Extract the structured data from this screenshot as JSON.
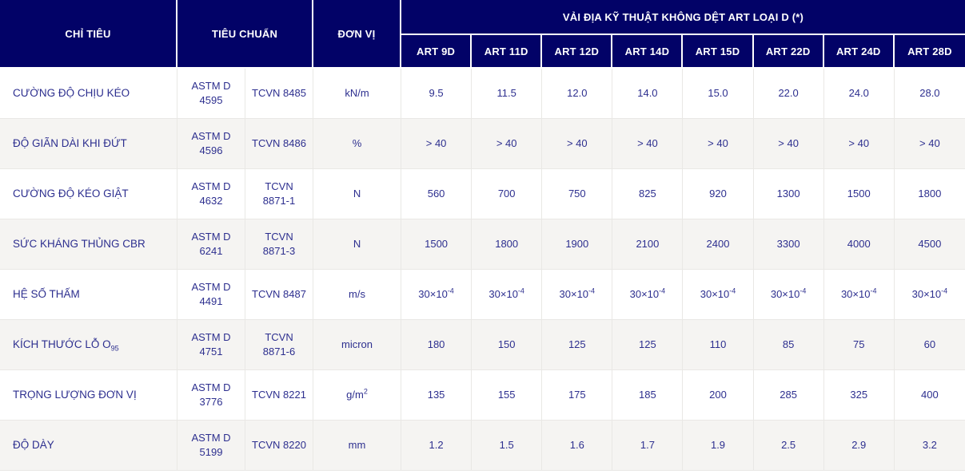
{
  "table": {
    "header": {
      "col_chi_tieu": "CHỈ TIÊU",
      "col_tieu_chuan": "TIÊU CHUẨN",
      "col_don_vi": "ĐƠN VỊ",
      "group_title": "VẢI ĐỊA KỸ THUẬT KHÔNG DỆT ART LOẠI D (*)",
      "product_columns": [
        "ART 9D",
        "ART 11D",
        "ART 12D",
        "ART 14D",
        "ART 15D",
        "ART 22D",
        "ART 24D",
        "ART 28D"
      ]
    },
    "rows": [
      {
        "label": "CƯỜNG ĐỘ CHỊU KÉO",
        "astm": "ASTM D 4595",
        "tcvn": "TCVN 8485",
        "unit": "kN/m",
        "values": [
          "9.5",
          "11.5",
          "12.0",
          "14.0",
          "15.0",
          "22.0",
          "24.0",
          "28.0"
        ]
      },
      {
        "label": "ĐỘ GIÃN DÀI KHI ĐỨT",
        "astm": "ASTM D 4596",
        "tcvn": "TCVN 8486",
        "unit": "%",
        "values": [
          "> 40",
          "> 40",
          "> 40",
          "> 40",
          "> 40",
          "> 40",
          "> 40",
          "> 40"
        ]
      },
      {
        "label": "CƯỜNG ĐỘ KÉO GIẬT",
        "astm": "ASTM D 4632",
        "tcvn": "TCVN 8871-1",
        "unit": "N",
        "values": [
          "560",
          "700",
          "750",
          "825",
          "920",
          "1300",
          "1500",
          "1800"
        ]
      },
      {
        "label": "SỨC KHÁNG THỦNG CBR",
        "astm": "ASTM D 6241",
        "tcvn": "TCVN 8871-3",
        "unit": "N",
        "values": [
          "1500",
          "1800",
          "1900",
          "2100",
          "2400",
          "3300",
          "4000",
          "4500"
        ]
      },
      {
        "label": "HỆ SỐ THẤM",
        "astm": "ASTM D 4491",
        "tcvn": "TCVN 8487",
        "unit": "m/s",
        "values": [
          "30×10^{-4}",
          "30×10^{-4}",
          "30×10^{-4}",
          "30×10^{-4}",
          "30×10^{-4}",
          "30×10^{-4}",
          "30×10^{-4}",
          "30×10^{-4}"
        ]
      },
      {
        "label": "KÍCH THƯỚC LỖ O_{95}",
        "astm": "ASTM D 4751",
        "tcvn": "TCVN 8871-6",
        "unit": "micron",
        "values": [
          "180",
          "150",
          "125",
          "125",
          "110",
          "85",
          "75",
          "60"
        ]
      },
      {
        "label": "TRỌNG LƯỢNG ĐƠN VỊ",
        "astm": "ASTM D 3776",
        "tcvn": "TCVN 8221",
        "unit": "g/m^{2}",
        "values": [
          "135",
          "155",
          "175",
          "185",
          "200",
          "285",
          "325",
          "400"
        ]
      },
      {
        "label": "ĐỘ DÀY",
        "astm": "ASTM D 5199",
        "tcvn": "TCVN 8220",
        "unit": "mm",
        "values": [
          "1.2",
          "1.5",
          "1.6",
          "1.7",
          "1.9",
          "2.5",
          "2.9",
          "3.2"
        ]
      }
    ],
    "colors": {
      "header_bg": "#020267",
      "header_text": "#ffffff",
      "body_text": "#2d2f8f",
      "alt_row_bg": "#f5f4f2",
      "border": "#e9e8e5"
    }
  }
}
